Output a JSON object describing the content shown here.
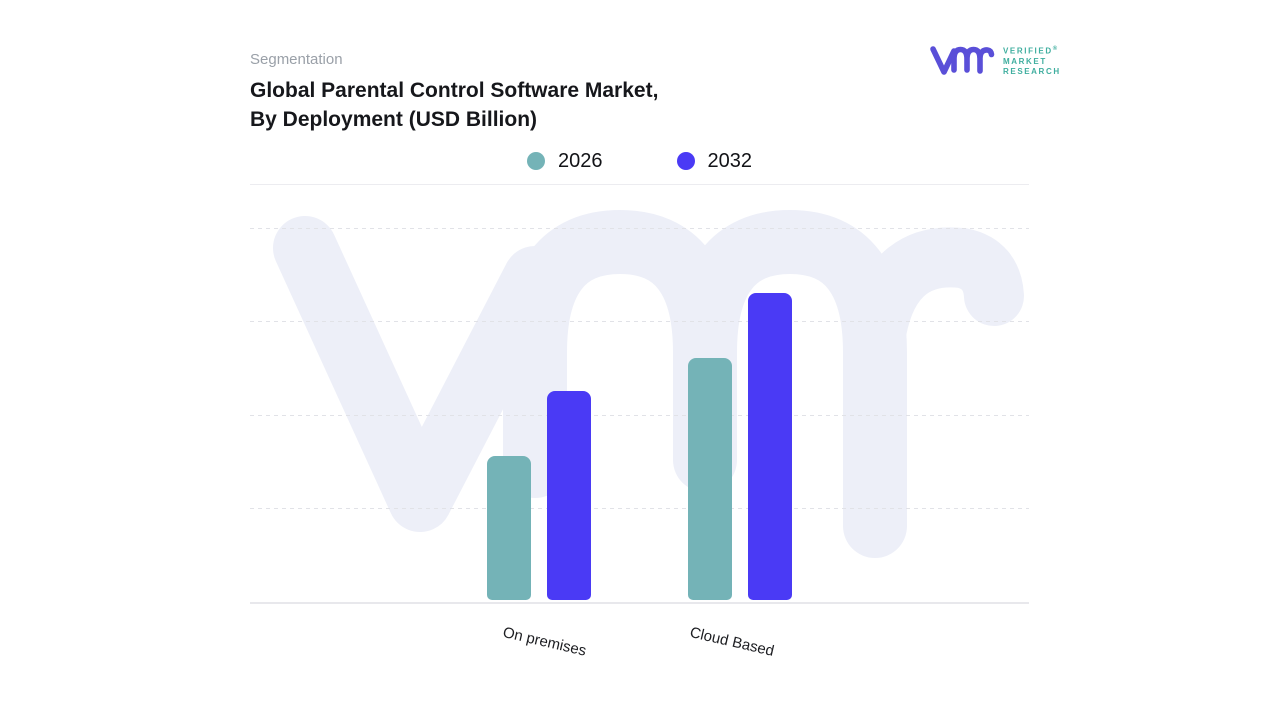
{
  "header": {
    "eyebrow": "Segmentation",
    "title_lines": [
      "Global Parental Control Software Market,",
      "By Deployment (USD Billion)"
    ]
  },
  "brand": {
    "logo_text_lines": [
      "VERIFIED",
      "MARKET",
      "RESEARCH"
    ],
    "registered_symbol": "®",
    "logo_mark_color": "#5a4fd8",
    "logo_text_color": "#3fae9f",
    "watermark_color": "#edeff8"
  },
  "chart_data": {
    "type": "bar",
    "title": "Global Parental Control Software Market, By Deployment (USD Billion)",
    "categories": [
      "On premises",
      "Cloud Based"
    ],
    "series": [
      {
        "name": "2026",
        "color": "#74b3b7",
        "values": [
          1.55,
          2.6
        ]
      },
      {
        "name": "2032",
        "color": "#4a3af5",
        "values": [
          2.25,
          3.3
        ]
      }
    ],
    "xlabel": "",
    "ylabel": "",
    "ylim": [
      0,
      4
    ],
    "y_tick_labels_visible": false,
    "gridlines": "horizontal dashed, solid baseline",
    "legend_position": "top-center",
    "note": "y-axis is unlabeled; values are in relative gridline units estimated from the chart (units: USD Billion)"
  }
}
